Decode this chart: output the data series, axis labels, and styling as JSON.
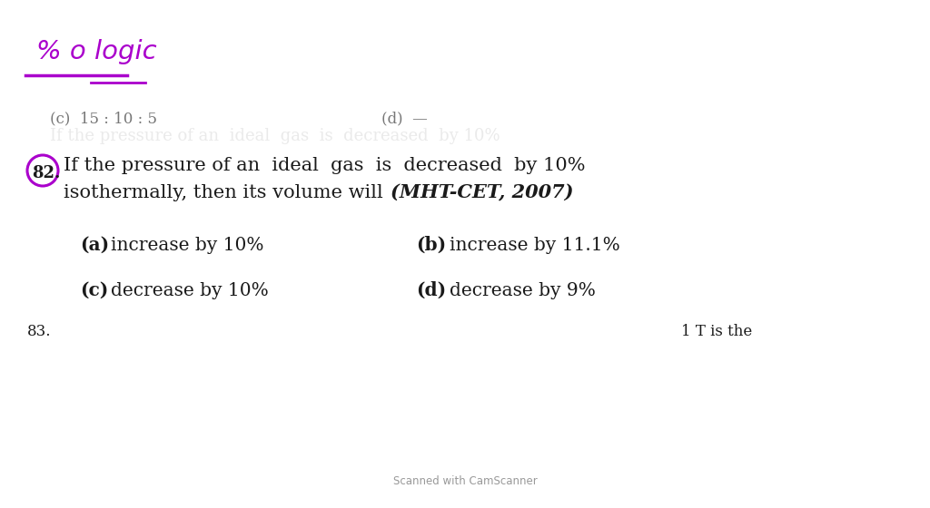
{
  "background_color": "#ffffff",
  "top_handwriting": "%∙ logic",
  "top_handwriting_color": "#aa00cc",
  "prev_line": "(c)  15 : 10 : 5                   (d)  —",
  "prev_line_color": "#777777",
  "question_number": "82.",
  "circle_color": "#aa00cc",
  "question_line1": "If the pressure of an  ideal  gas  is  decreased  by 10%",
  "question_line2": "isothermally, then its volume will",
  "citation": "(MHT-CET, 2007)",
  "option_a_label": "(a)",
  "option_a_text": "increase by 10%",
  "option_b_label": "(b)",
  "option_b_text": "increase by 11.1%",
  "option_c_label": "(c)",
  "option_c_text": "decrease by 10%",
  "option_d_label": "(d)",
  "option_d_text": "decrease by 9%",
  "bottom_line_left": "83.",
  "bottom_line_right": "1 T is the",
  "footer": "Scanned with CamScanner",
  "text_color": "#1a1a1a",
  "footer_color": "#999999",
  "fig_width": 10.24,
  "fig_height": 5.6,
  "dpi": 100
}
